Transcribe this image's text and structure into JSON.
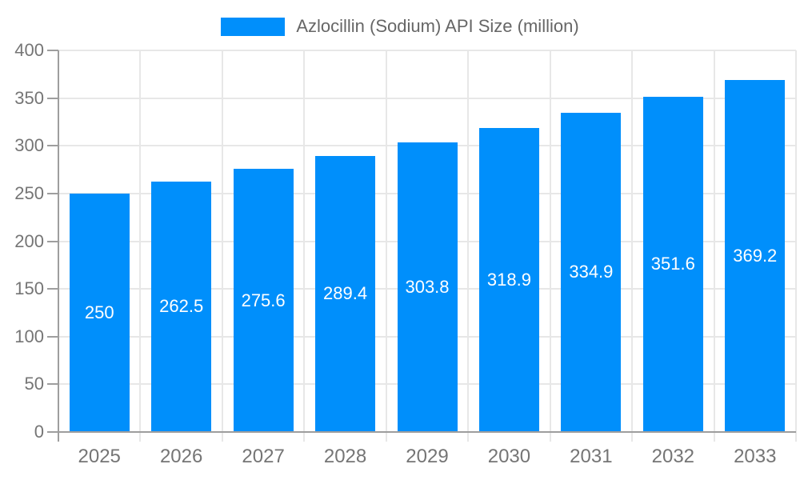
{
  "chart_data": {
    "type": "bar",
    "title": "",
    "legend": {
      "label": "Azlocillin (Sodium) API Size (million)",
      "position": "top"
    },
    "categories": [
      "2025",
      "2026",
      "2027",
      "2028",
      "2029",
      "2030",
      "2031",
      "2032",
      "2033"
    ],
    "series": [
      {
        "name": "Azlocillin (Sodium) API Size (million)",
        "values": [
          250,
          262.5,
          275.6,
          289.4,
          303.8,
          318.9,
          334.9,
          351.6,
          369.2
        ]
      }
    ],
    "value_labels": [
      "250",
      "262.5",
      "275.6",
      "289.4",
      "303.8",
      "318.9",
      "334.9",
      "351.6",
      "369.2"
    ],
    "xlabel": "",
    "ylabel": "",
    "ylim": [
      0,
      400
    ],
    "yticks": [
      0,
      50,
      100,
      150,
      200,
      250,
      300,
      350,
      400
    ],
    "grid": true,
    "colors": {
      "bar": "#008FFB",
      "grid": "#e7e7e7",
      "axis": "#9e9e9e",
      "axis_label": "#757575",
      "legend_text": "#666666",
      "value_label": "#ffffff",
      "background": "#ffffff"
    }
  }
}
